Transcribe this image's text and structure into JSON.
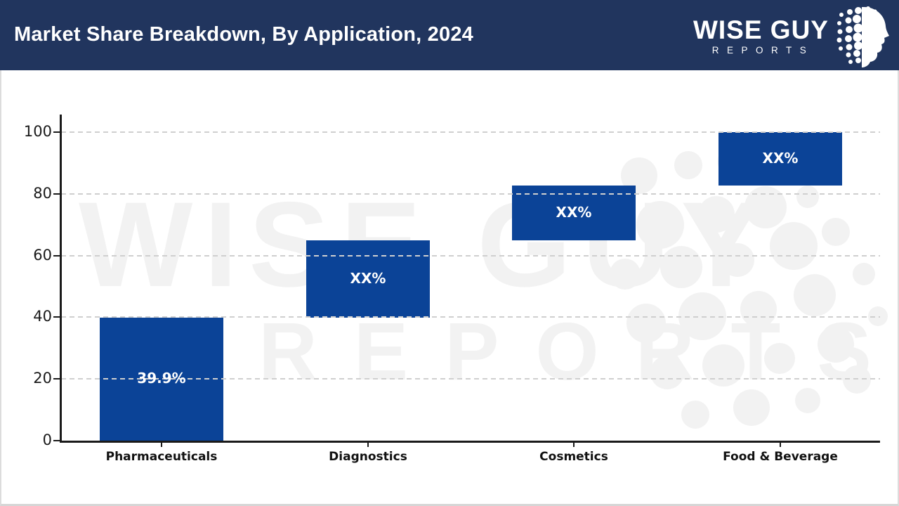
{
  "header": {
    "title": "Market Share Breakdown, By Application, 2024",
    "logo": {
      "line1": "WISE GUY",
      "line2": "REPORTS"
    }
  },
  "watermark": {
    "line1": "WISE GUY",
    "line2": "REPORTS"
  },
  "colors": {
    "header_bg": "#21355E",
    "title_text": "#FFFFFF",
    "bar": "#0B4397",
    "bar_label": "#FFFFFF",
    "grid": "#CFCFCF",
    "axis": "#1A1A1A",
    "watermark": "#F2F2F2",
    "panel_border": "#DCDCDC"
  },
  "chart_data": {
    "type": "bar",
    "subtype": "floating-waterfall",
    "title": "Market Share Breakdown, By Application, 2024",
    "categories": [
      "Pharmaceuticals",
      "Diagnostics",
      "Cosmetics",
      "Food & Beverage"
    ],
    "segments": [
      {
        "category": "Pharmaceuticals",
        "start": 0,
        "end": 39.9,
        "label": "39.9%"
      },
      {
        "category": "Diagnostics",
        "start": 39.9,
        "end": 65,
        "label": "XX%"
      },
      {
        "category": "Cosmetics",
        "start": 65,
        "end": 82.8,
        "label": "XX%"
      },
      {
        "category": "Food & Beverage",
        "start": 82.8,
        "end": 100,
        "label": "XX%"
      }
    ],
    "ylim": [
      0,
      100
    ],
    "yticks": [
      0,
      20,
      40,
      60,
      80,
      100
    ],
    "grid": "horizontal-dashed-above-bars",
    "legend": "none",
    "xlabel": "",
    "ylabel": ""
  }
}
